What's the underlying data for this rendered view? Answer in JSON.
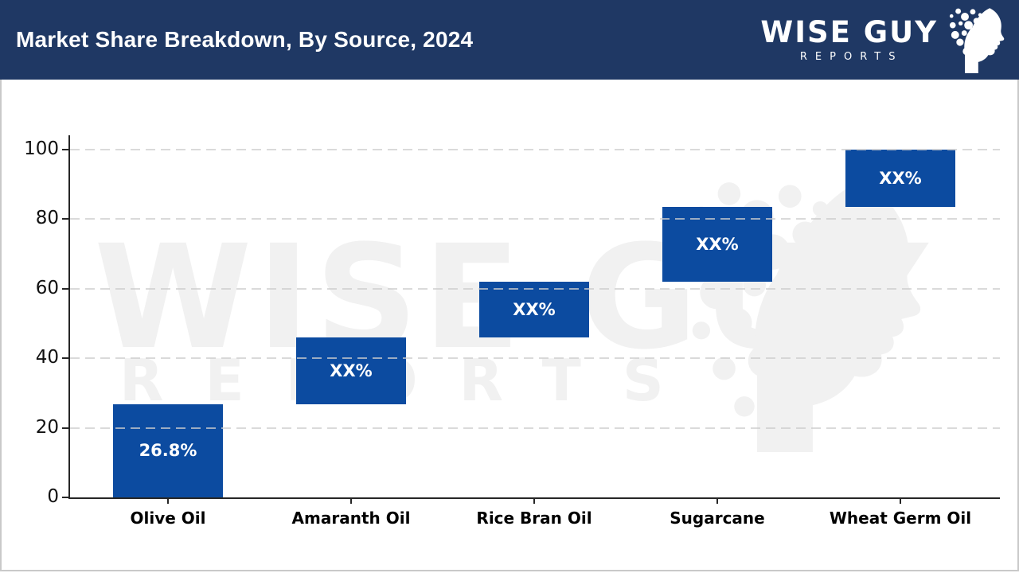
{
  "header": {
    "title": "Market Share Breakdown, By Source, 2024",
    "logo": {
      "line1": "WISE GUY",
      "line2": "REPORTS"
    }
  },
  "watermark": {
    "line1": "WISE GUY",
    "line2": "REPORTS"
  },
  "colors": {
    "header_bg": "#1F3864",
    "bar": "#0C4BA0",
    "axis": "#262626",
    "gridline": "#d5d5d5",
    "watermark": "#f1f1f1",
    "label_on_bar": "#ffffff"
  },
  "chart_data": {
    "type": "bar",
    "subtype": "waterfall",
    "title": "Market Share Breakdown, By Source, 2024",
    "categories": [
      "Olive Oil",
      "Amaranth Oil",
      "Rice Bran Oil",
      "Sugarcane",
      "Wheat Germ Oil"
    ],
    "segments": [
      {
        "category": "Olive Oil",
        "start": 0,
        "end": 26.8,
        "label": "26.8%"
      },
      {
        "category": "Amaranth Oil",
        "start": 26.8,
        "end": 46.0,
        "label": "XX%"
      },
      {
        "category": "Rice Bran Oil",
        "start": 46.0,
        "end": 62.0,
        "label": "XX%"
      },
      {
        "category": "Sugarcane",
        "start": 62.0,
        "end": 83.5,
        "label": "XX%"
      },
      {
        "category": "Wheat Germ Oil",
        "start": 83.5,
        "end": 100,
        "label": "XX%"
      }
    ],
    "y_ticks": [
      0,
      20,
      40,
      60,
      80,
      100
    ],
    "ylim": [
      0,
      100
    ],
    "xlabel": "",
    "ylabel": "",
    "grid": true,
    "grid_style": "dashed",
    "legend": false
  }
}
